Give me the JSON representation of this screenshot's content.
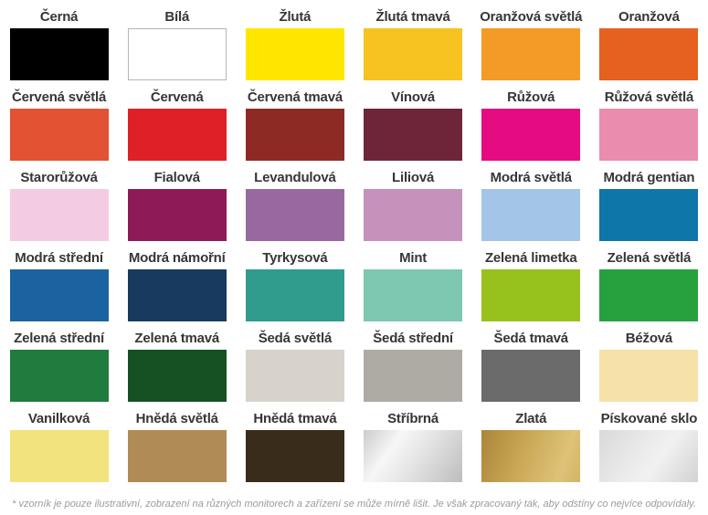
{
  "chart_data": {
    "type": "table",
    "title": "Color sample chart (vzorník barev)",
    "rows": 6,
    "columns": 6,
    "items": [
      {
        "label": "Černá",
        "color": "#000000",
        "css": "background:#000000"
      },
      {
        "label": "Bílá",
        "color": "#ffffff",
        "css": "background:#ffffff;border:1px solid #b5b5b5"
      },
      {
        "label": "Žlutá",
        "color": "#ffe600",
        "css": "background:#ffe600"
      },
      {
        "label": "Žlutá tmavá",
        "color": "#f6c321",
        "css": "background:#f6c321"
      },
      {
        "label": "Oranžová světlá",
        "color": "#f39a27",
        "css": "background:#f39a27"
      },
      {
        "label": "Oranžová",
        "color": "#e6611f",
        "css": "background:#e6611f"
      },
      {
        "label": "Červená světlá",
        "color": "#e25233",
        "css": "background:#e25233"
      },
      {
        "label": "Červená",
        "color": "#de2027",
        "css": "background:#de2027"
      },
      {
        "label": "Červená tmavá",
        "color": "#8d2a24",
        "css": "background:#8d2a24"
      },
      {
        "label": "Vínová",
        "color": "#6f2539",
        "css": "background:#6f2539"
      },
      {
        "label": "Růžová",
        "color": "#e50b80",
        "css": "background:#e50b80"
      },
      {
        "label": "Růžová světlá",
        "color": "#ea8cae",
        "css": "background:#ea8cae"
      },
      {
        "label": "Starorůžová",
        "color": "#f4cce2",
        "css": "background:#f4cce2"
      },
      {
        "label": "Fialová",
        "color": "#8e1a57",
        "css": "background:#8e1a57"
      },
      {
        "label": "Levandulová",
        "color": "#9a68a0",
        "css": "background:#9a68a0"
      },
      {
        "label": "Liliová",
        "color": "#c492ba",
        "css": "background:#c492ba"
      },
      {
        "label": "Modrá světlá",
        "color": "#a2c5e8",
        "css": "background:#a2c5e8"
      },
      {
        "label": "Modrá gentian",
        "color": "#0e76a8",
        "css": "background:#0e76a8"
      },
      {
        "label": "Modrá střední",
        "color": "#1b63a0",
        "css": "background:#1b63a0"
      },
      {
        "label": "Modrá námořní",
        "color": "#183a5e",
        "css": "background:#183a5e"
      },
      {
        "label": "Tyrkysová",
        "color": "#2f9c8d",
        "css": "background:#2f9c8d"
      },
      {
        "label": "Mint",
        "color": "#7ec7b0",
        "css": "background:#7ec7b0"
      },
      {
        "label": "Zelená limetka",
        "color": "#97c21d",
        "css": "background:#97c21d"
      },
      {
        "label": "Zelená světlá",
        "color": "#27a13e",
        "css": "background:#27a13e"
      },
      {
        "label": "Zelená střední",
        "color": "#1f7c3e",
        "css": "background:#1f7c3e"
      },
      {
        "label": "Zelená tmavá",
        "color": "#155123",
        "css": "background:#155123"
      },
      {
        "label": "Šedá světlá",
        "color": "#d7d3ca",
        "css": "background:#d7d3ca"
      },
      {
        "label": "Šedá střední",
        "color": "#adaba3",
        "css": "background:#adaba3"
      },
      {
        "label": "Šedá tmavá",
        "color": "#6b6b6b",
        "css": "background:#6b6b6b"
      },
      {
        "label": "Béžová",
        "color": "#f6e2a8",
        "css": "background:#f6e2a8"
      },
      {
        "label": "Vanilková",
        "color": "#f2e37e",
        "css": "background:#f2e37e"
      },
      {
        "label": "Hnědá světlá",
        "color": "#b18b55",
        "css": "background:#b18b55"
      },
      {
        "label": "Hnědá tmavá",
        "color": "#3a2c1b",
        "css": "background:#3a2c1b"
      },
      {
        "label": "Stříbrná",
        "color": "silver-metallic",
        "css": "background:linear-gradient(125deg,#cccccc 0%,#f7f7f7 30%,#e4e4e4 55%,#bdbdbd 100%)"
      },
      {
        "label": "Zlatá",
        "color": "gold-metallic",
        "css": "background:linear-gradient(110deg,#ab853a 0%,#c8a654 40%,#dfc278 80%,#d3b465 100%)"
      },
      {
        "label": "Pískované sklo",
        "color": "frosted-glass",
        "css": "background:linear-gradient(125deg,#d9d9d9 0%,#ececec 45%,#f1f1f1 60%,#d2d2d2 100%)"
      }
    ]
  },
  "footnote": {
    "text": "* vzorník je pouze ilustrativní, zobrazení na různých monitorech a zařízení se může mírně lišit. Je však zpracovaný tak, aby odstíny co nejvíce odpovídaly."
  }
}
